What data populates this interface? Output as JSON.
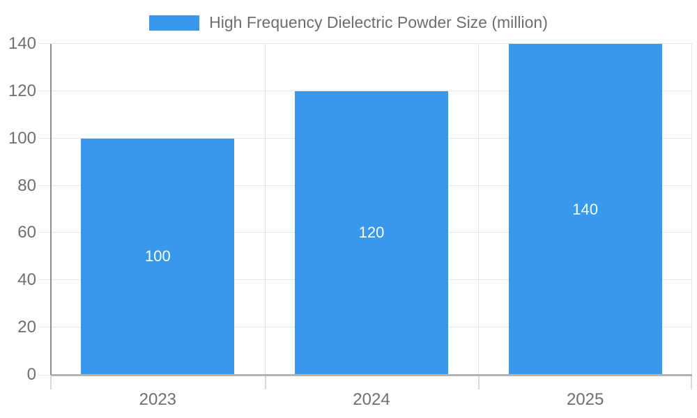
{
  "legend": {
    "label": "High Frequency Dielectric Powder Size (million)"
  },
  "colors": {
    "bar": "#3898EC",
    "grid": "#e6e6e6",
    "axis_y": "#8f8f8f",
    "axis_x": "#b3b3b3",
    "tick_text": "#6f6f6f",
    "legend_text": "#6d6d6d",
    "data_label_text": "#ffffff"
  },
  "chart_data": {
    "type": "bar",
    "title": "High Frequency Dielectric Powder Size (million)",
    "categories": [
      "2023",
      "2024",
      "2025"
    ],
    "values": [
      100,
      120,
      140
    ],
    "series": [
      {
        "name": "High Frequency Dielectric Powder Size (million)",
        "values": [
          100,
          120,
          140
        ]
      }
    ],
    "data_labels": [
      "100",
      "120",
      "140"
    ],
    "data_label_position": "inside-center",
    "xlabel": "",
    "ylabel": "",
    "ylim": [
      0,
      140
    ],
    "yticks": [
      0,
      20,
      40,
      60,
      80,
      100,
      120,
      140
    ],
    "grid": true,
    "legend_position": "top-center"
  }
}
